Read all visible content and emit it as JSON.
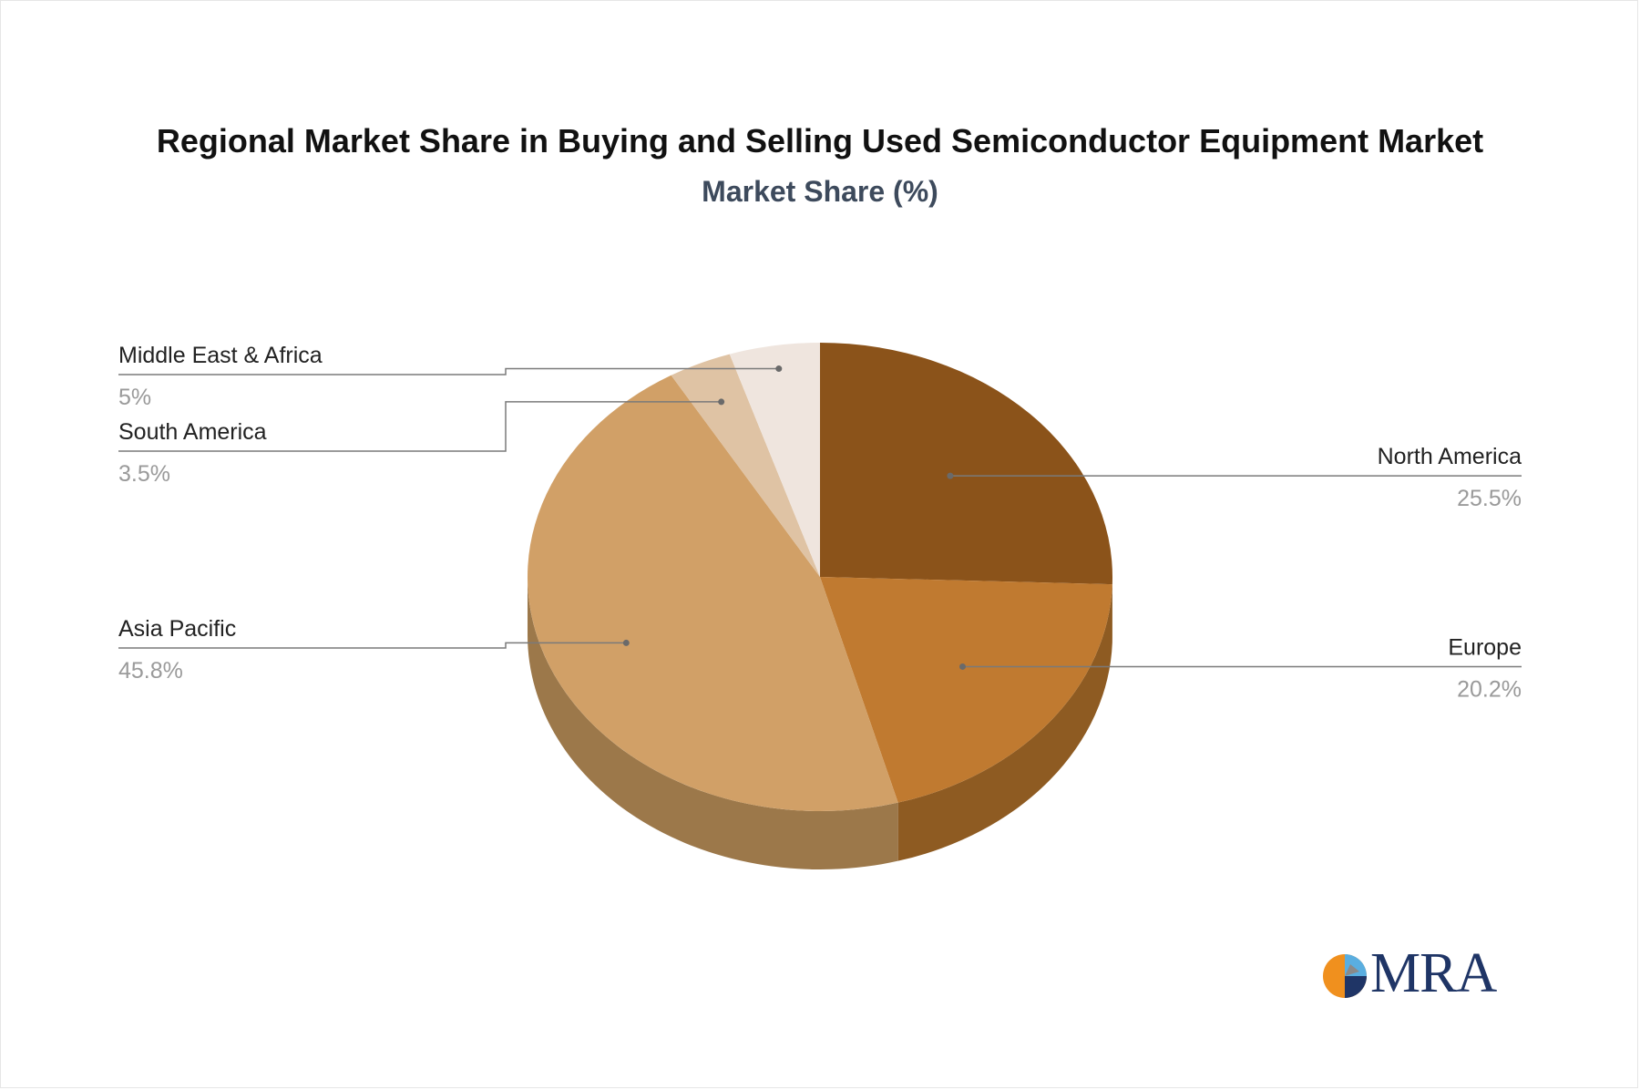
{
  "title": "Regional Market Share in Buying and Selling Used Semiconductor Equipment Market",
  "subtitle": "Market Share (%)",
  "logo": {
    "text": "MRA",
    "colors": {
      "orange": "#f0901e",
      "blue": "#5aaee0",
      "navy": "#1f3566"
    }
  },
  "chart_data": {
    "type": "pie",
    "style": "3d",
    "title": "Regional Market Share in Buying and Selling Used Semiconductor Equipment Market",
    "subtitle": "Market Share (%)",
    "slices": [
      {
        "label": "North America",
        "value": 25.5,
        "value_label": "25.5%",
        "color": "#8b531a",
        "side_color": "#6e4214",
        "label_side": "right"
      },
      {
        "label": "Europe",
        "value": 20.2,
        "value_label": "20.2%",
        "color": "#c07a30",
        "side_color": "#8e5b22",
        "label_side": "right"
      },
      {
        "label": "Asia Pacific",
        "value": 45.8,
        "value_label": "45.8%",
        "color": "#d1a067",
        "side_color": "#9c784a",
        "label_side": "left"
      },
      {
        "label": "South America",
        "value": 3.5,
        "value_label": "3.5%",
        "color": "#dfc3a4",
        "side_color": "#a89276",
        "label_side": "left"
      },
      {
        "label": "Middle East & Africa",
        "value": 5,
        "value_label": "5%",
        "color": "#efe5de",
        "side_color": "#b7aca4",
        "label_side": "left"
      }
    ]
  }
}
